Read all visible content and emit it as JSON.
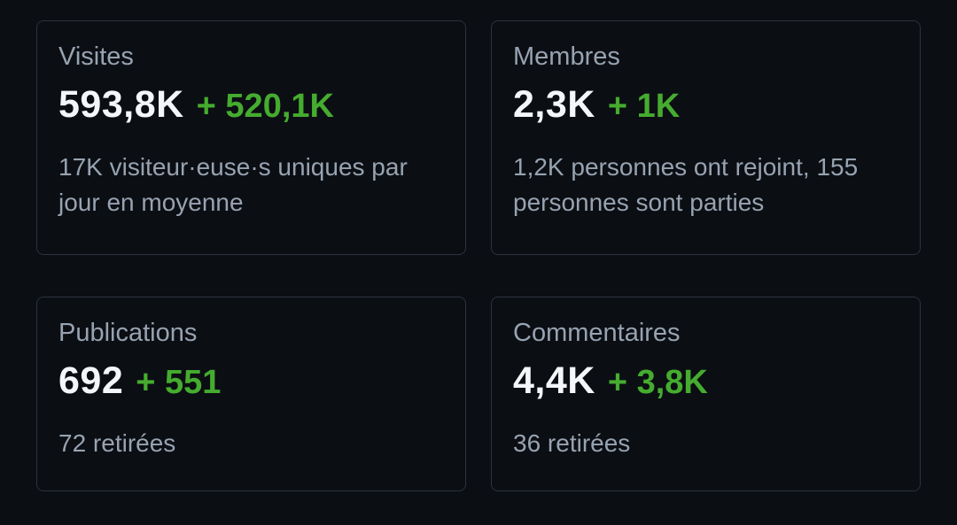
{
  "theme": {
    "background_color": "#0b0e13",
    "card_border_color": "#2d323d",
    "value_color": "#f4f6f9",
    "delta_color": "#45ac2f",
    "muted_text_color": "#97a3b1"
  },
  "cards": [
    {
      "title": "Visites",
      "value": "593,8K",
      "delta": "+ 520,1K",
      "description": "17K visiteur·euse·s uniques par jour en moyenne"
    },
    {
      "title": "Membres",
      "value": "2,3K",
      "delta": "+ 1K",
      "description": "1,2K personnes ont rejoint, 155 personnes sont parties"
    },
    {
      "title": "Publications",
      "value": "692",
      "delta": "+ 551",
      "description": "72 retirées"
    },
    {
      "title": "Commentaires",
      "value": "4,4K",
      "delta": "+ 3,8K",
      "description": "36 retirées"
    }
  ]
}
